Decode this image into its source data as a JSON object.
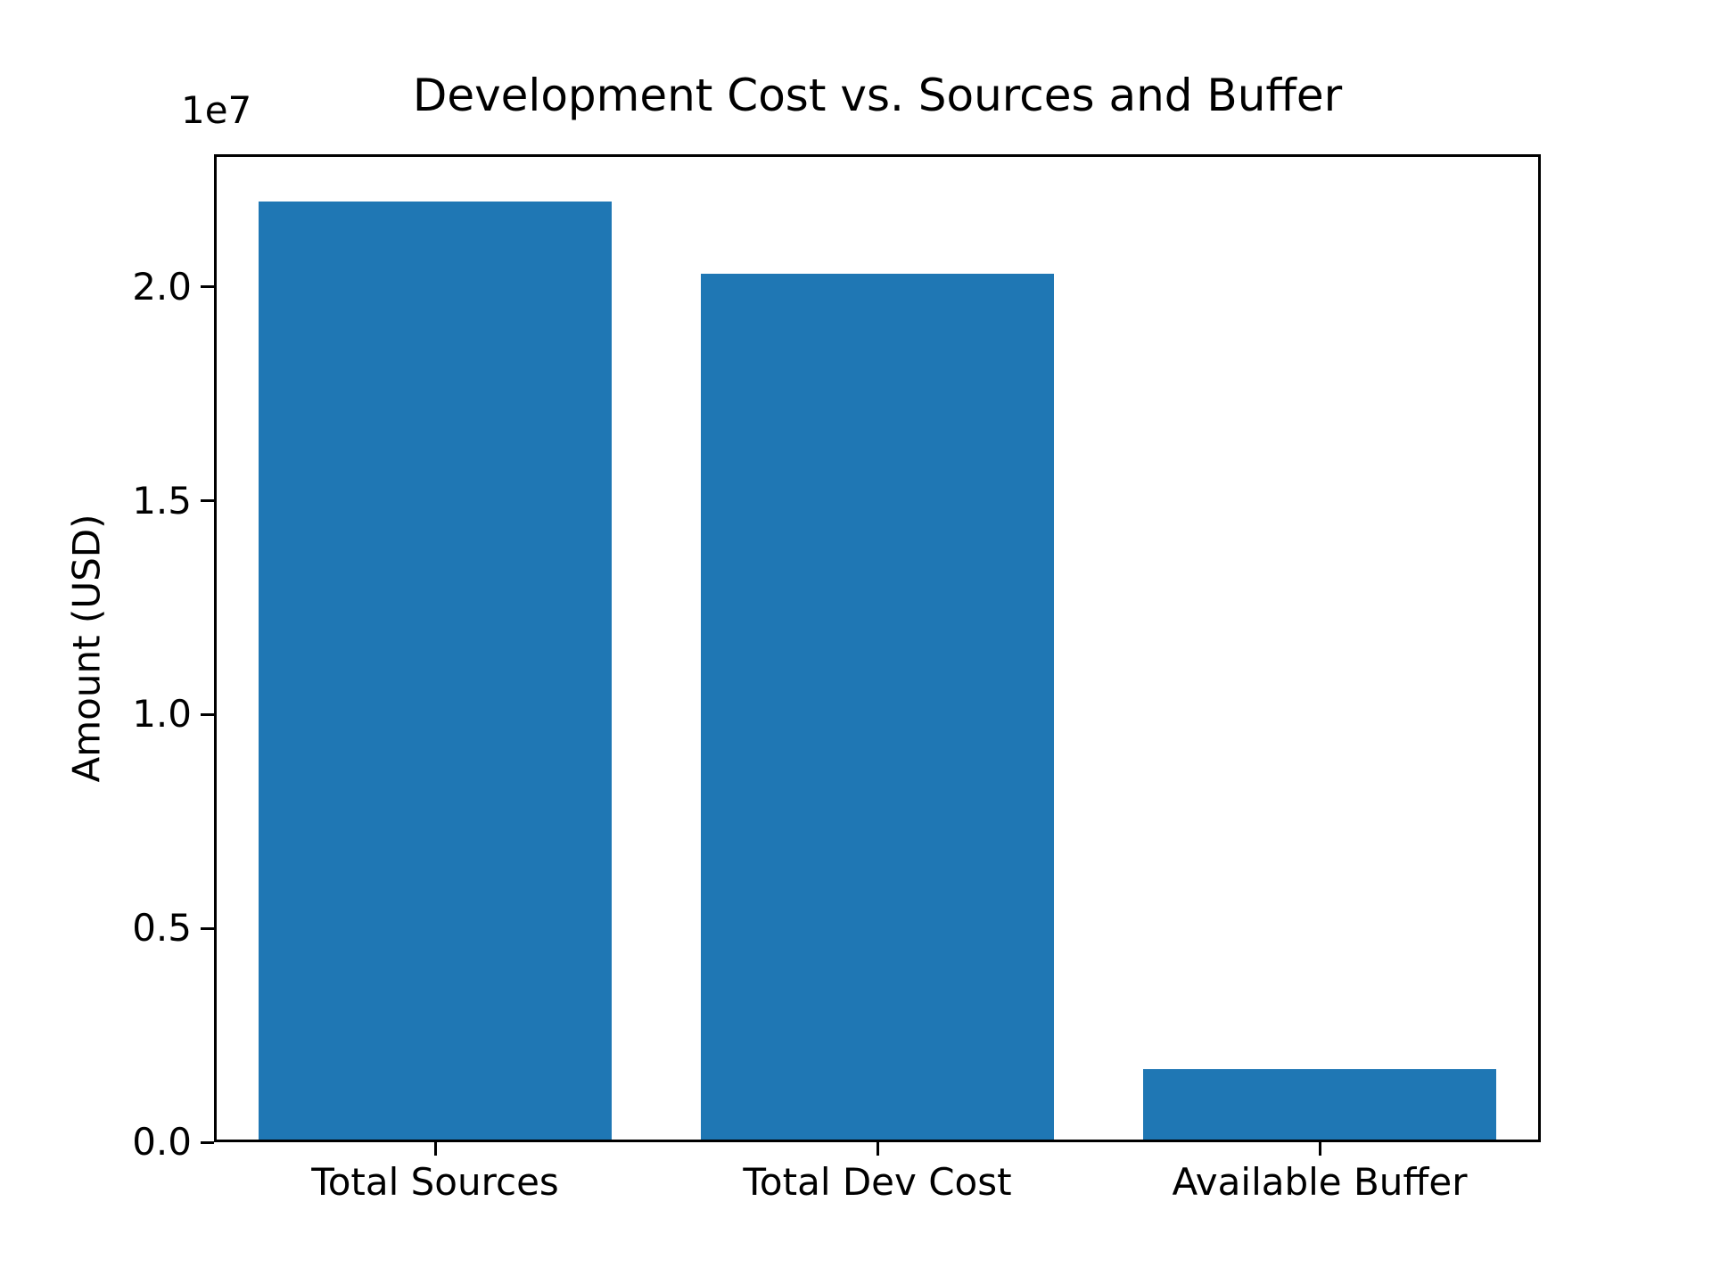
{
  "chart_data": {
    "type": "bar",
    "title": "Development Cost vs. Sources and Buffer",
    "categories": [
      "Total Sources",
      "Total Dev Cost",
      "Available Buffer"
    ],
    "values": [
      22000000,
      20300000,
      1700000
    ],
    "xlabel": "",
    "ylabel": "Amount (USD)",
    "offset_text": "1e7",
    "ylim": [
      0,
      23100000
    ],
    "y_ticks": [
      0.0,
      0.5,
      1.0,
      1.5,
      2.0
    ],
    "y_tick_labels": [
      "0.0",
      "0.5",
      "1.0",
      "1.5",
      "2.0"
    ],
    "bar_color": "#1f77b4",
    "grid": false,
    "legend": null
  }
}
